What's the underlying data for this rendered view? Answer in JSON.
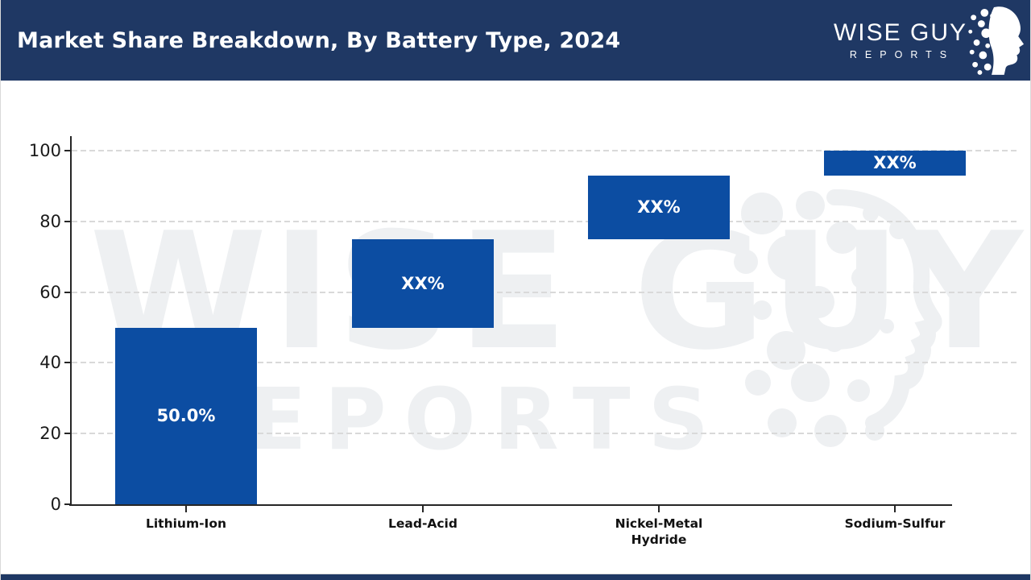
{
  "header": {
    "title": "Market Share Breakdown, By Battery Type, 2024",
    "logo": {
      "line1": "WISE GUY",
      "line2": "REPORTS"
    }
  },
  "watermark": {
    "line1": "WISE GUY",
    "line2": "REPORTS"
  },
  "chart_data": {
    "type": "bar",
    "variant": "waterfall",
    "title": "Market Share Breakdown, By Battery Type, 2024",
    "categories": [
      "Lithium-Ion",
      "Lead-Acid",
      "Nickel-Metal Hydride",
      "Sodium-Sulfur"
    ],
    "segments": [
      {
        "category": "Lithium-Ion",
        "start": 0,
        "end": 50,
        "label": "50.0%"
      },
      {
        "category": "Lead-Acid",
        "start": 50,
        "end": 75,
        "label": "XX%"
      },
      {
        "category": "Nickel-Metal Hydride",
        "start": 75,
        "end": 93,
        "label": "XX%"
      },
      {
        "category": "Sodium-Sulfur",
        "start": 93,
        "end": 100,
        "label": "XX%"
      }
    ],
    "values_estimated": [
      50,
      25,
      18,
      7
    ],
    "yticks": [
      0,
      20,
      40,
      60,
      80,
      100
    ],
    "ylim": [
      0,
      100
    ],
    "xlabel": "",
    "ylabel": "",
    "grid": "horizontal-dashed",
    "legend": "none",
    "bar_color": "#0C4DA2",
    "bar_label_color": "#FFFFFF"
  },
  "colors": {
    "header_bg": "#1F3864",
    "footer_bg": "#1F3864",
    "bar": "#0C4DA2",
    "watermark": "#EEF0F2",
    "gridline": "#D9D9D9",
    "axis": "#262626",
    "text": "#111111"
  }
}
